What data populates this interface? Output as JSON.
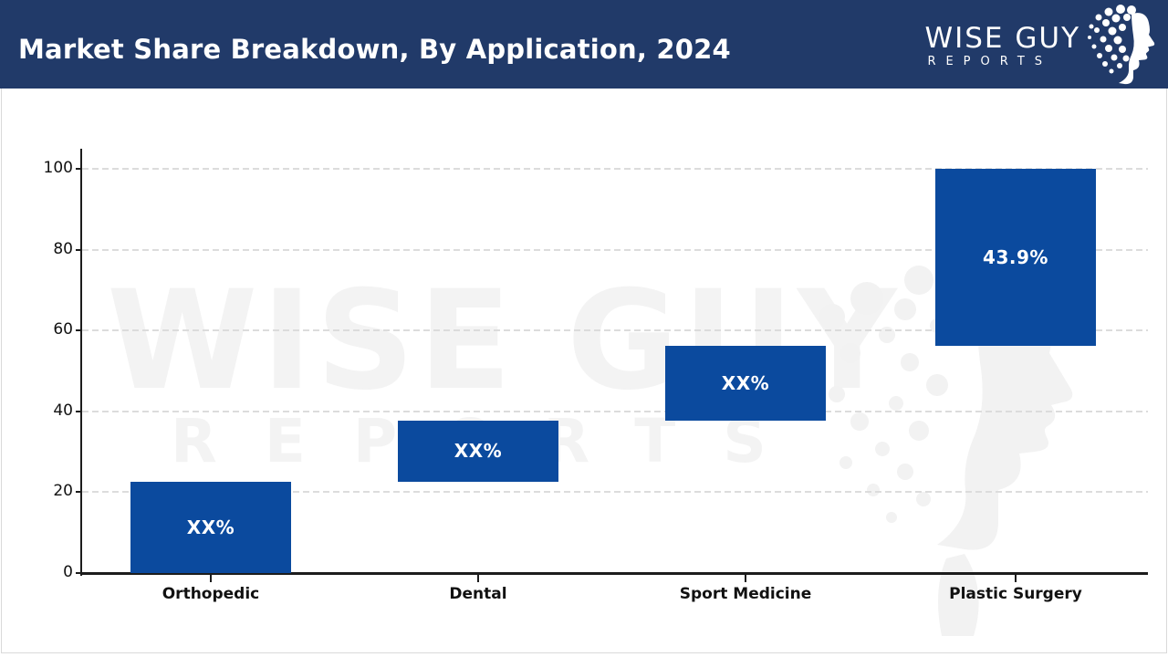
{
  "header": {
    "title": "Market Share Breakdown, By Application, 2024",
    "background_color": "#213a69",
    "logo": {
      "line1": "WISE GUY",
      "line2": "REPORTS"
    }
  },
  "watermark": {
    "line1": "WISE GUY",
    "line2": "REPORTS"
  },
  "chart_data": {
    "type": "bar",
    "subtype": "floating-waterfall",
    "title": "Market Share Breakdown, By Application, 2024",
    "categories": [
      "Orthopedic",
      "Dental",
      "Sport Medicine",
      "Plastic Surgery"
    ],
    "segments": [
      {
        "category": "Orthopedic",
        "start": 0,
        "end": 22.6,
        "size": 22.6,
        "label": "XX%"
      },
      {
        "category": "Dental",
        "start": 22.6,
        "end": 37.8,
        "size": 15.2,
        "label": "XX%"
      },
      {
        "category": "Sport Medicine",
        "start": 37.8,
        "end": 56.1,
        "size": 18.3,
        "label": "XX%"
      },
      {
        "category": "Plastic Surgery",
        "start": 56.1,
        "end": 100,
        "size": 43.9,
        "label": "43.9%"
      }
    ],
    "xlabel": "",
    "ylabel": "",
    "ylim": [
      0,
      100
    ],
    "yticks": [
      "0",
      "20",
      "40",
      "60",
      "80",
      "100"
    ],
    "grid": "horizontal-dashed",
    "legend": "none",
    "bar_color": "#0b4a9e",
    "bar_label_color": "#ffffff"
  }
}
